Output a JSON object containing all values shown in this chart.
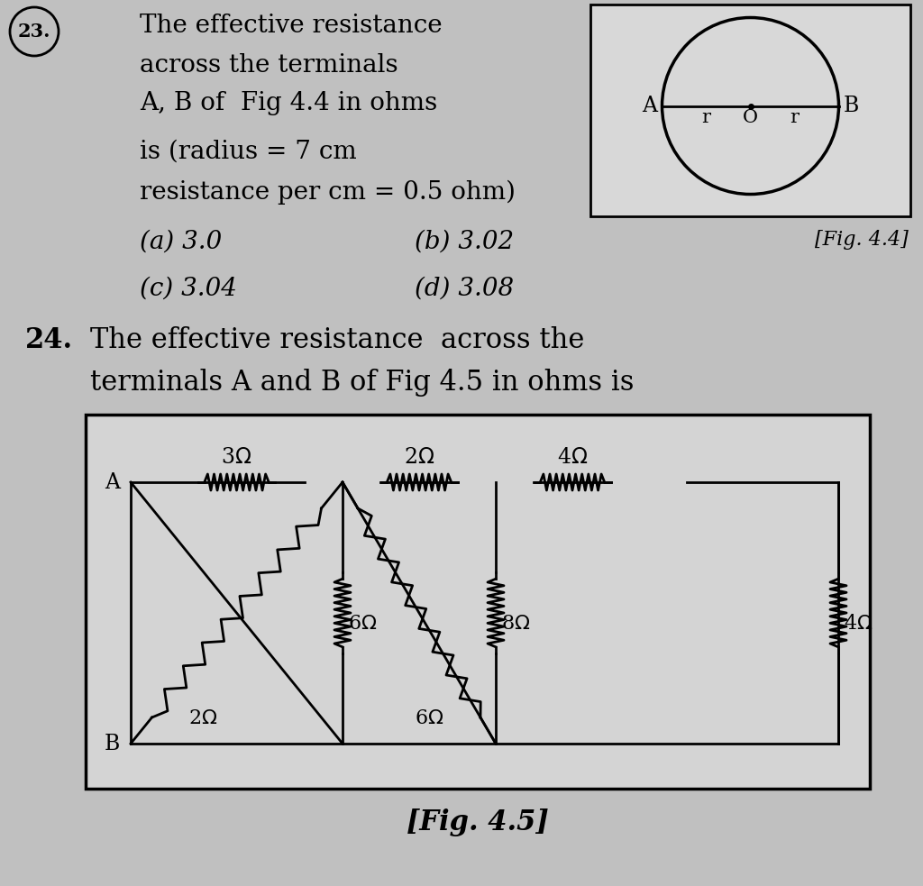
{
  "bg_color": "#c8c8c8",
  "q23_line1": "The effective resistance",
  "q23_line2": "across the terminals",
  "q23_line3": "A, B of  Fig 4.4 in ohms",
  "q23_line4": "is (radius = 7 cm",
  "q23_line5": "resistance per cm = 0.5 ohm)",
  "fig44_label": "[Fig. 4.4]",
  "opt_a": "(a) 3.0",
  "opt_b": "(b) 3.02",
  "opt_c": "(c) 3.04",
  "opt_d": "(d) 3.08",
  "q24_line1": "The effective resistance  across the",
  "q24_line2": "terminals A and B of Fig 4.5 in ohms is",
  "fig45_label": "[Fig. 4.5]",
  "circuit_resistors_top": [
    "3Ω",
    "2Ω",
    "4Ω"
  ],
  "circuit_resistors_diag_left": "2Ω",
  "circuit_resistors_vert": [
    "6Ω",
    "6Ω",
    "8Ω",
    "4Ω"
  ]
}
